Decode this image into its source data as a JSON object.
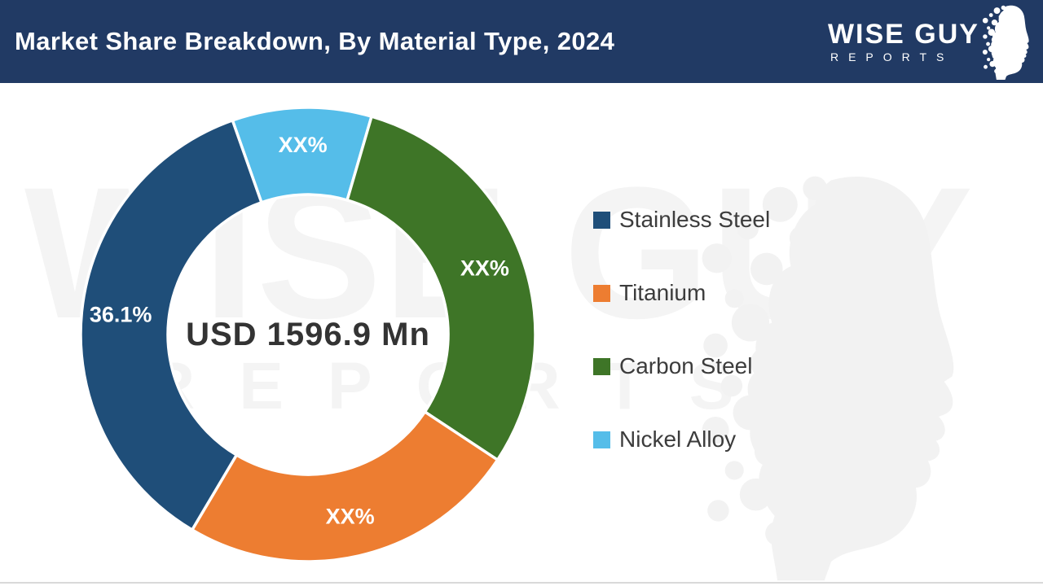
{
  "header": {
    "title": "Market Share Breakdown, By Material Type, 2024",
    "logo": {
      "name_line": "WISE GUY",
      "sub_line": "REPORTS"
    }
  },
  "watermark": {
    "line1": "WISE GUY",
    "line2": "REPORTS"
  },
  "colors": {
    "header_bg": "#213a64",
    "stainless_steel": "#1f4e79",
    "titanium": "#ed7d31",
    "carbon_steel": "#3e7527",
    "nickel_alloy": "#55bde9",
    "center_text": "#333333",
    "watermark_gray": "#f2f2f2",
    "divider": "#d9d9d9"
  },
  "chart_data": {
    "type": "pie",
    "subtype": "donut",
    "title": "Market Share Breakdown, By Material Type, 2024",
    "center_label": "USD 1596.9 Mn",
    "start_angle_deg": -19.4,
    "outer_radius": 279,
    "inner_radius": 172,
    "label_radius": 231,
    "slices": [
      {
        "label": "Nickel Alloy",
        "display_value": "XX%",
        "estimated_pct": 9.9,
        "color": "#55bde9"
      },
      {
        "label": "Carbon Steel",
        "display_value": "XX%",
        "estimated_pct": 29.8,
        "color": "#3e7527"
      },
      {
        "label": "Titanium",
        "display_value": "XX%",
        "estimated_pct": 24.2,
        "color": "#ed7d31"
      },
      {
        "label": "Stainless Steel",
        "display_value": "36.1%",
        "estimated_pct": 36.1,
        "color": "#1f4e79"
      }
    ],
    "legend_position": "right",
    "legend": [
      {
        "label": "Stainless Steel",
        "color": "#1f4e79"
      },
      {
        "label": "Titanium",
        "color": "#ed7d31"
      },
      {
        "label": "Carbon Steel",
        "color": "#3e7527"
      },
      {
        "label": "Nickel Alloy",
        "color": "#55bde9"
      }
    ]
  }
}
